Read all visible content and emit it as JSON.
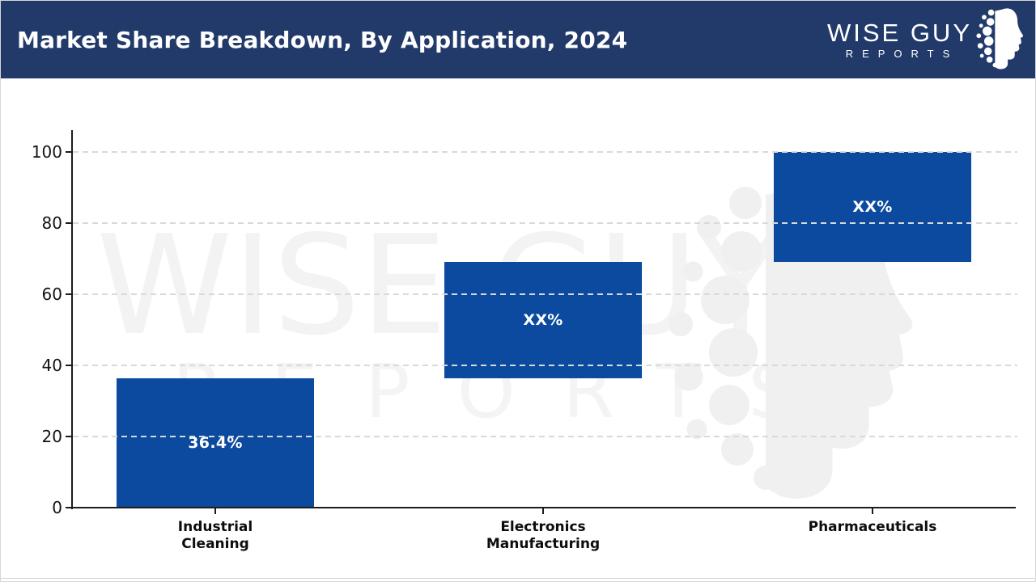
{
  "header": {
    "title": "Market Share Breakdown, By Application, 2024",
    "logo": {
      "wordmark": "WISE GUY",
      "sub": "REPORTS"
    }
  },
  "watermark": {
    "line1": "WISE GUY",
    "line2": "REPORTS"
  },
  "colors": {
    "header_bg": "#223a6a",
    "bar_blue": "#0b4a9f",
    "grid_gray": "#d9d9d9",
    "axis_black": "#1c1c1c",
    "watermark_gray": "#f3f3f3"
  },
  "chart_data": {
    "type": "bar",
    "subtype": "floating-segment-waterfall",
    "title": "Market Share Breakdown, By Application, 2024",
    "categories": [
      [
        "Industrial",
        "Cleaning"
      ],
      [
        "Electronics",
        "Manufacturing"
      ],
      [
        "Pharmaceuticals"
      ]
    ],
    "series": [
      {
        "name": "Market share (%)",
        "segments": [
          {
            "category": "Industrial Cleaning",
            "start": 0,
            "end": 36.4,
            "label": "36.4%"
          },
          {
            "category": "Electronics Manufacturing",
            "start": 36.4,
            "end": 69.2,
            "label": "XX%"
          },
          {
            "category": "Pharmaceuticals",
            "start": 69.2,
            "end": 100,
            "label": "XX%"
          }
        ]
      }
    ],
    "ylim": [
      0,
      100
    ],
    "yticks": [
      0,
      20,
      40,
      60,
      80,
      100
    ],
    "xlabel": "",
    "ylabel": "",
    "grid": "horizontal-dashed",
    "legend": "none",
    "bar_color": "#0b4a9f"
  }
}
